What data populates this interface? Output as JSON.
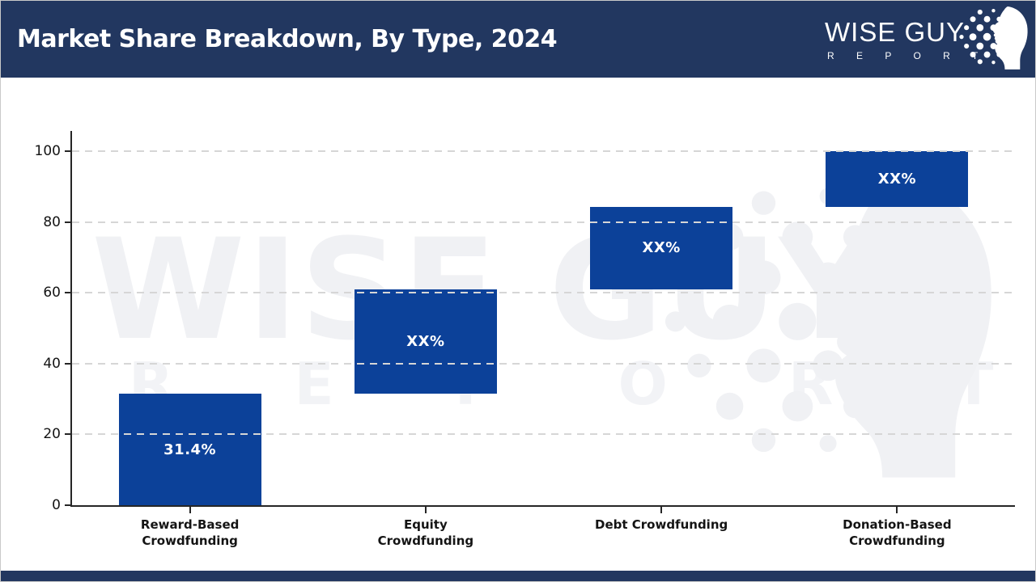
{
  "header": {
    "title": "Market Share Breakdown, By Type, 2024",
    "brand": {
      "name_top": "WISE GUY",
      "name_bottom": "R E P O R T S"
    }
  },
  "watermark": {
    "text_top": "WISE GUY",
    "text_bottom": "R E P O R T S"
  },
  "chart_data": {
    "type": "bar",
    "subtype": "floating-waterfall",
    "title": "Market Share Breakdown, By Type, 2024",
    "categories": [
      "Reward-Based Crowdfunding",
      "Equity Crowdfunding",
      "Debt Crowdfunding",
      "Donation-Based Crowdfunding"
    ],
    "category_lines": [
      [
        "Reward-Based",
        "Crowdfunding"
      ],
      [
        "Equity",
        "Crowdfunding"
      ],
      [
        "Debt Crowdfunding"
      ],
      [
        "Donation-Based",
        "Crowdfunding"
      ]
    ],
    "bars": [
      {
        "category": "Reward-Based Crowdfunding",
        "start": 0,
        "end": 31.4,
        "segment_size": 31.4,
        "label": "31.4%"
      },
      {
        "category": "Equity Crowdfunding",
        "start": 31.4,
        "end": 61.0,
        "segment_size": 29.6,
        "label": "XX%"
      },
      {
        "category": "Debt Crowdfunding",
        "start": 61.0,
        "end": 84.3,
        "segment_size": 23.3,
        "label": "XX%"
      },
      {
        "category": "Donation-Based Crowdfunding",
        "start": 84.3,
        "end": 100.0,
        "segment_size": 15.7,
        "label": "XX%"
      }
    ],
    "xlabel": "",
    "ylabel": "",
    "ylim": [
      0,
      100
    ],
    "yticks": [
      0,
      20,
      40,
      60,
      80,
      100
    ],
    "grid": "horizontal dashed, drawn over bars",
    "legend": "none",
    "bar_color": "#0c4199"
  },
  "colors": {
    "header_bg": "#223760",
    "footer_bg": "#223760",
    "bar": "#0c4199",
    "grid": "#d6d6d6",
    "axis": "#262626",
    "title_text": "#ffffff",
    "watermark": "#f0f1f4",
    "frame_border": "#c9c9c9"
  }
}
